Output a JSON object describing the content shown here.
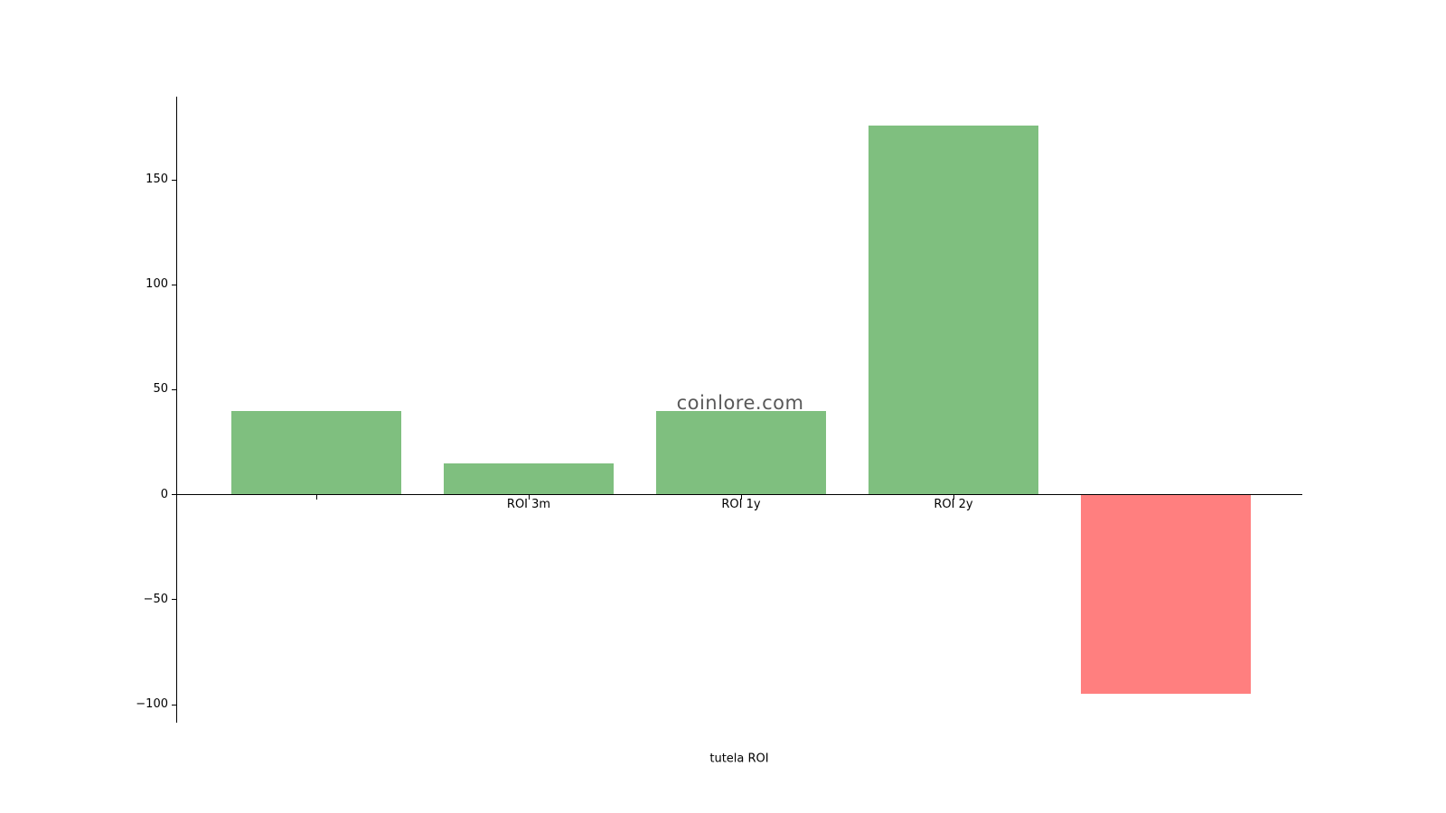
{
  "watermark": {
    "text": "coinlore.com",
    "color": "#595959"
  },
  "chart_data": {
    "type": "bar",
    "categories": [
      "",
      "ROI 3m",
      "ROI 1y",
      "ROI 2y",
      ""
    ],
    "values": [
      40,
      15,
      40,
      176,
      -95
    ],
    "bar_colors": [
      "#7fbf7f",
      "#7fbf7f",
      "#7fbf7f",
      "#7fbf7f",
      "#ff7f7f"
    ],
    "positive_color": "#7fbf7f",
    "negative_color": "#ff7f7f",
    "y_ticks": [
      150,
      100,
      50,
      0,
      -50,
      -100
    ],
    "x_tick_positions": [
      0,
      1,
      2,
      3
    ],
    "ylim": [
      -108.6,
      189.6
    ],
    "xlabel": "tutela ROI",
    "ylabel": "",
    "grid": false,
    "legend": false,
    "axis_color": "#000000",
    "background": "#ffffff"
  }
}
